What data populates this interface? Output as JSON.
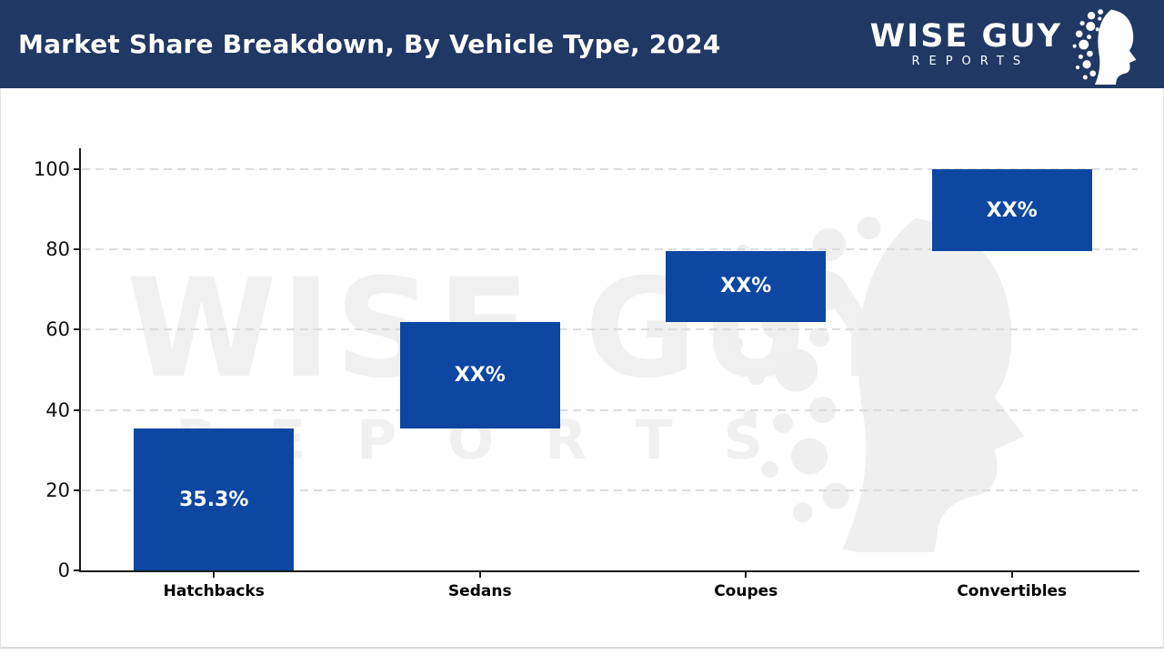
{
  "header": {
    "title": "Market Share Breakdown, By Vehicle Type, 2024",
    "bg_color": "#203864",
    "brand": {
      "line1": "WISE GUY",
      "line2": "REPORTS"
    }
  },
  "watermark": {
    "line1": "WISE GUY",
    "line2": "REPORTS"
  },
  "chart_data": {
    "type": "bar",
    "subtype": "waterfall",
    "title": "Market Share Breakdown, By Vehicle Type, 2024",
    "categories": [
      "Hatchbacks",
      "Sedans",
      "Coupes",
      "Convertibles"
    ],
    "segments": [
      {
        "category": "Hatchbacks",
        "start": 0,
        "end": 35.3,
        "label": "35.3%"
      },
      {
        "category": "Sedans",
        "start": 35.3,
        "end": 62,
        "label": "XX%"
      },
      {
        "category": "Coupes",
        "start": 62,
        "end": 79.5,
        "label": "XX%"
      },
      {
        "category": "Convertibles",
        "start": 79.5,
        "end": 100,
        "label": "XX%"
      }
    ],
    "yticks": [
      0,
      20,
      40,
      60,
      80,
      100
    ],
    "ylim": [
      0,
      105
    ],
    "xlabel": "",
    "ylabel": "",
    "legend": "none",
    "grid": {
      "horizontal": true,
      "style": "dashed",
      "color": "#dcdcdc"
    },
    "bar_color": "#0d47a1",
    "value_label_color": "#ffffff"
  }
}
